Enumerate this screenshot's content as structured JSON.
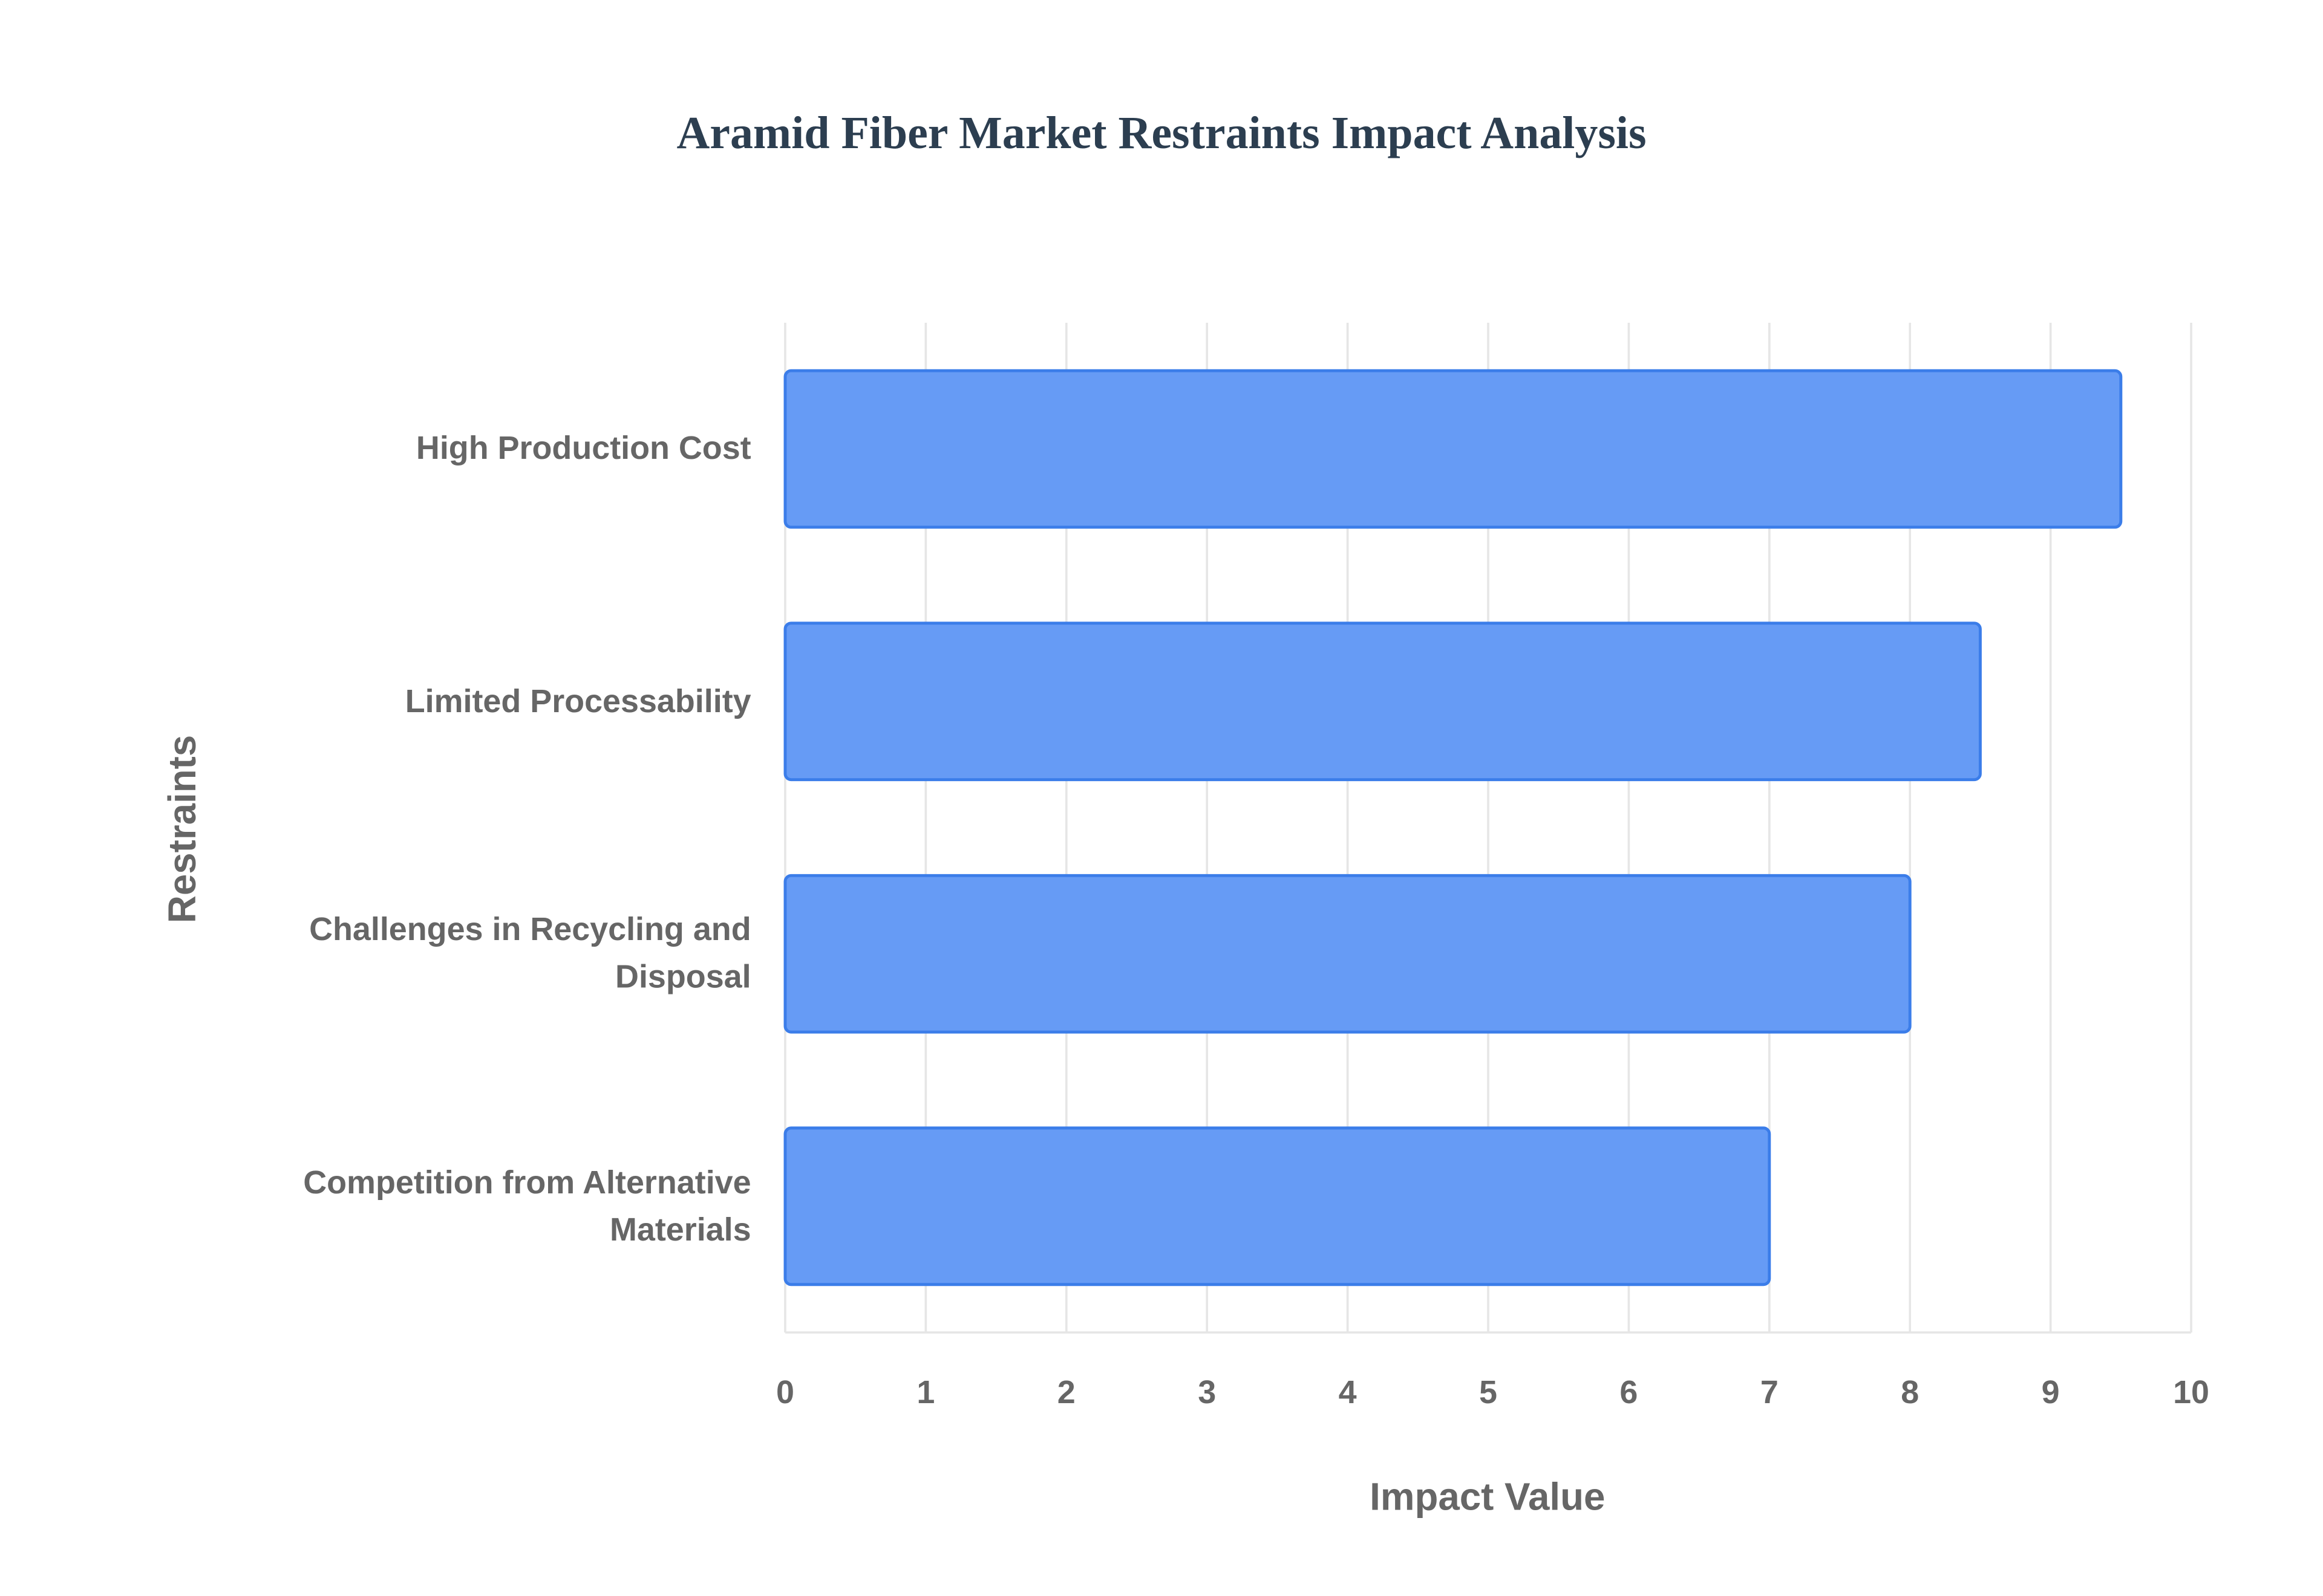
{
  "chart_data": {
    "type": "bar",
    "orientation": "horizontal",
    "title": "Aramid Fiber Market Restraints Impact Analysis",
    "x_label": "Impact Value",
    "y_label": "Restraints",
    "categories": [
      "High Production Cost",
      "Limited Processability",
      "Challenges in Recycling and Disposal",
      "Competition from Alternative Materials"
    ],
    "values": [
      9.5,
      8.5,
      8,
      7
    ],
    "color": "#6399f5",
    "border_color": "#3b7de9",
    "xlim": [
      0,
      10
    ],
    "xticks": [
      0,
      1,
      2,
      3,
      4,
      5,
      6,
      7,
      8,
      9,
      10
    ],
    "grid": true
  }
}
